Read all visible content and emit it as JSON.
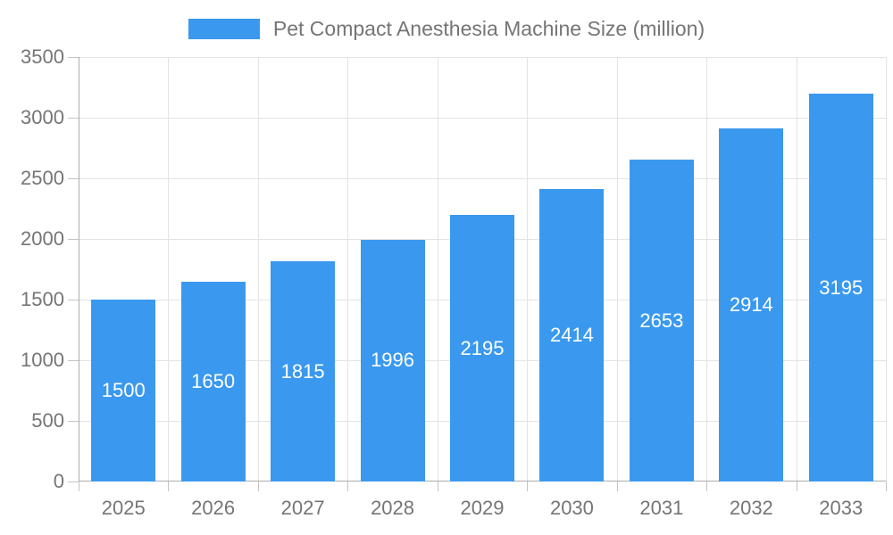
{
  "chart_data": {
    "type": "bar",
    "legend": "Pet Compact Anesthesia Machine Size (million)",
    "categories": [
      "2025",
      "2026",
      "2027",
      "2028",
      "2029",
      "2030",
      "2031",
      "2032",
      "2033"
    ],
    "values": [
      1500,
      1650,
      1815,
      1996,
      2195,
      2414,
      2653,
      2914,
      3195
    ],
    "ylim": [
      0,
      3500
    ],
    "yticks": [
      0,
      500,
      1000,
      1500,
      2000,
      2500,
      3000,
      3500
    ],
    "grid": true,
    "legend_position": "top-center",
    "value_labels": "inside-middle"
  },
  "colors": {
    "bar": "#3A99EE",
    "value_label": "#FFFFFF",
    "grid": "#E3E3E3",
    "axis": "#ADADAD",
    "tick": "#C4C4C4",
    "text": "#757575",
    "background": "#FFFFFF"
  }
}
